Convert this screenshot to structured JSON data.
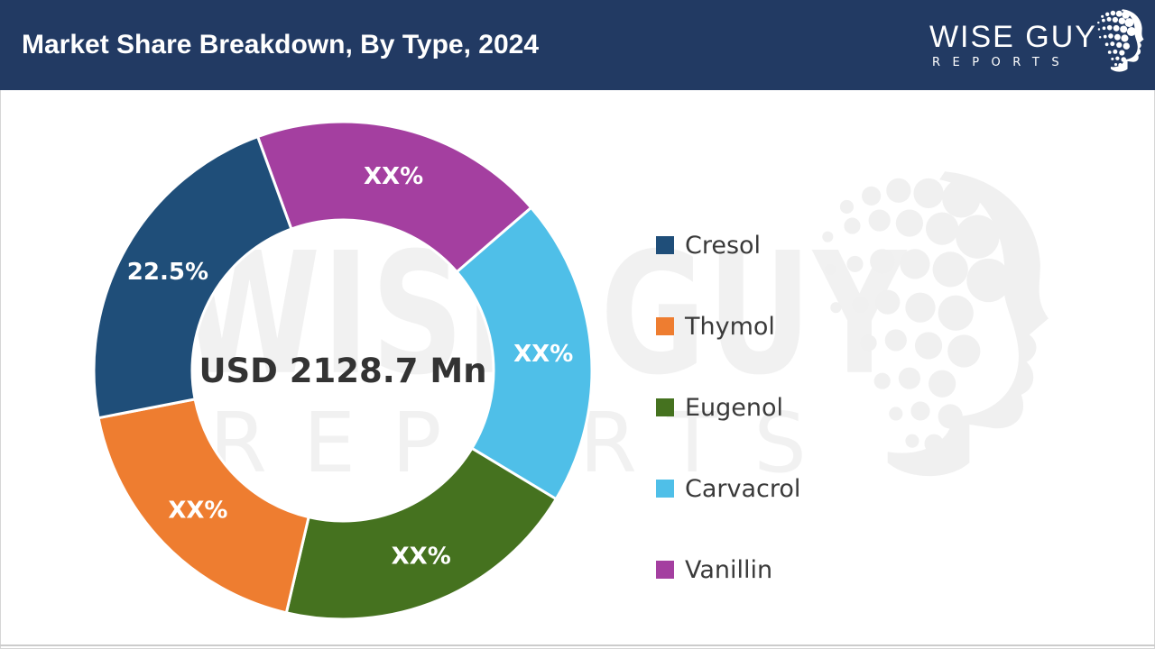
{
  "header": {
    "title": "Market Share Breakdown, By Type, 2024",
    "bg_color": "#223A63",
    "logo": {
      "wordmark": "WISE GUY",
      "reports": "REPORTS"
    }
  },
  "watermark": {
    "wordmark": "WISE GUY",
    "reports": "REPORTS"
  },
  "chart_data": {
    "type": "donut",
    "title": "Market Share Breakdown, By Type, 2024",
    "center_label": "USD 2128.7 Mn",
    "start_angle_cw_from_top_deg": 340,
    "direction": "counterclockwise",
    "legend_position": "right",
    "series": [
      {
        "label": "Cresol",
        "display_value": "22.5%",
        "value_pct": 22.5,
        "color": "#1F4E79"
      },
      {
        "label": "Thymol",
        "display_value": "XX%",
        "value_pct": 18.3,
        "color": "#EE7D30"
      },
      {
        "label": "Eugenol",
        "display_value": "XX%",
        "value_pct": 20.0,
        "color": "#45721F"
      },
      {
        "label": "Carvacrol",
        "display_value": "XX%",
        "value_pct": 20.0,
        "color": "#4FBFE8"
      },
      {
        "label": "Vanillin",
        "display_value": "XX%",
        "value_pct": 19.2,
        "color": "#A43FA0"
      }
    ]
  }
}
